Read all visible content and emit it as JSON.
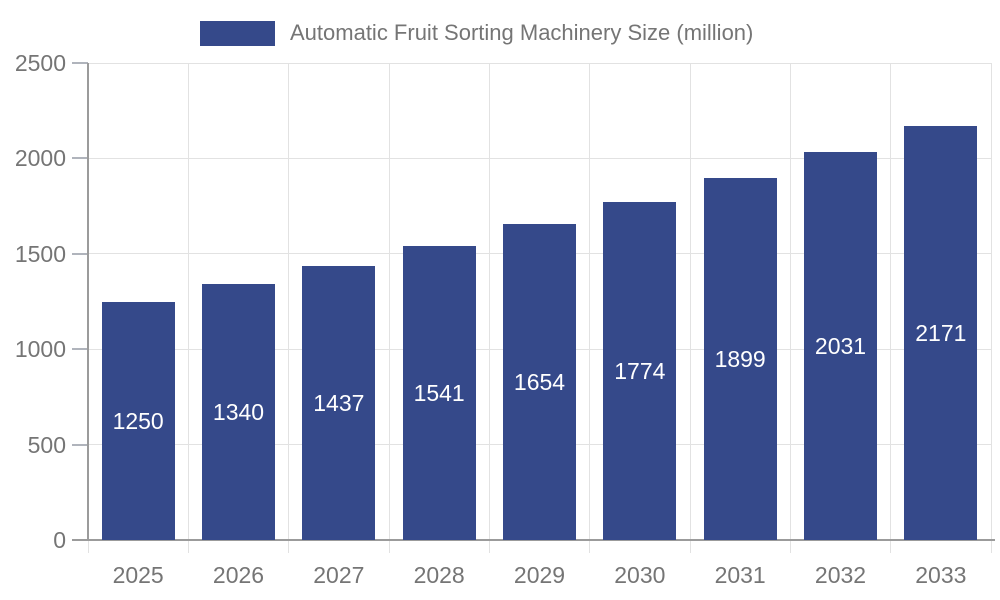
{
  "legend": {
    "label": "Automatic Fruit Sorting Machinery Size (million)"
  },
  "colors": {
    "bar": "#35498A",
    "axis_line": "#9b9b9b",
    "gridline": "#e2e2e2",
    "tick": "#b0b4bc",
    "axis_text": "#757575",
    "bar_label_text": "#ffffff",
    "background": "#ffffff"
  },
  "chart_data": {
    "type": "bar",
    "title": "Automatic Fruit Sorting Machinery Size (million)",
    "categories": [
      "2025",
      "2026",
      "2027",
      "2028",
      "2029",
      "2030",
      "2031",
      "2032",
      "2033"
    ],
    "values": [
      1250,
      1340,
      1437,
      1541,
      1654,
      1774,
      1899,
      2031,
      2171
    ],
    "series": [
      {
        "name": "Automatic Fruit Sorting Machinery Size (million)",
        "values": [
          1250,
          1340,
          1437,
          1541,
          1654,
          1774,
          1899,
          2031,
          2171
        ]
      }
    ],
    "xlabel": "",
    "ylabel": "",
    "ylim": [
      0,
      2500
    ],
    "yticks": [
      0,
      500,
      1000,
      1500,
      2000,
      2500
    ],
    "grid": true,
    "legend_position": "top",
    "value_label_position": "inside-center"
  }
}
